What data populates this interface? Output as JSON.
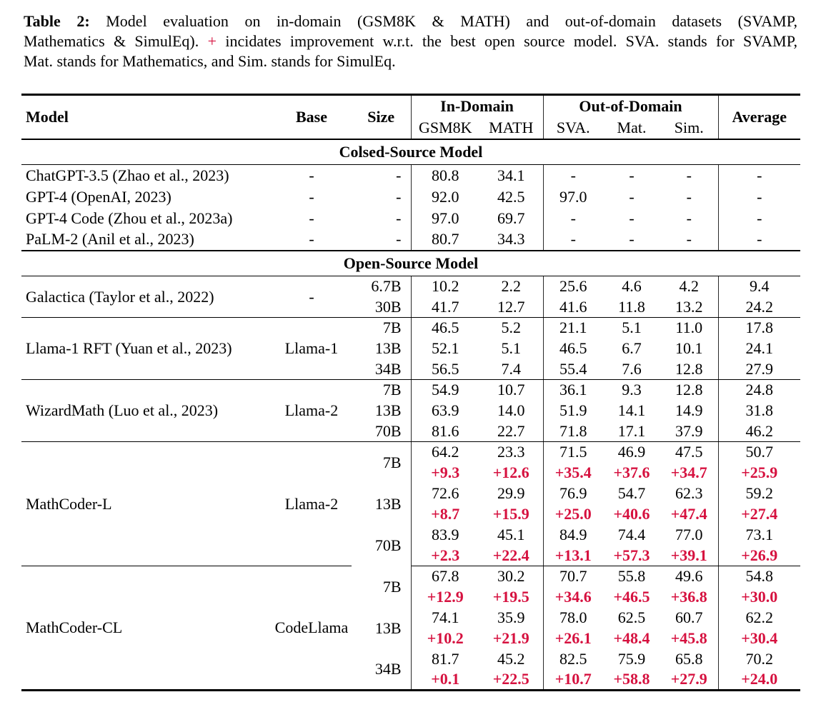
{
  "colors": {
    "accent_red": "#D6113F"
  },
  "caption": {
    "lines": [
      {
        "label": "Table 2:",
        "text": "Model evaluation on in-domain (GSM8K & MATH) and out-of-domain datasets (SVAMP,"
      },
      {
        "pre": "Mathematics & SimulEq).",
        "plus": "+",
        "post": "incidates improvement w.r.t. the best open source model. SVA. stands for SVAMP,"
      },
      {
        "text": "Mat. stands for Mathematics, and Sim. stands for SimulEq."
      }
    ]
  },
  "table": {
    "header": {
      "model": "Model",
      "base": "Base",
      "size": "Size",
      "in_domain": "In-Domain",
      "out_of_domain": "Out-of-Domain",
      "average": "Average",
      "subcolumns": [
        "GSM8K",
        "MATH",
        "SVA.",
        "Mat.",
        "Sim."
      ]
    },
    "sections": [
      {
        "title": "Colsed-Source Model",
        "groups": [
          {
            "rows": [
              {
                "model": "ChatGPT-3.5 (Zhao et al., 2023)",
                "base": "-",
                "size": "-",
                "values": [
                  "80.8",
                  "34.1",
                  "-",
                  "-",
                  "-",
                  "-"
                ]
              },
              {
                "model": "GPT-4 (OpenAI, 2023)",
                "base": "-",
                "size": "-",
                "values": [
                  "92.0",
                  "42.5",
                  "97.0",
                  "-",
                  "-",
                  "-"
                ]
              },
              {
                "model": "GPT-4 Code (Zhou et al., 2023a)",
                "base": "-",
                "size": "-",
                "values": [
                  "97.0",
                  "69.7",
                  "-",
                  "-",
                  "-",
                  "-"
                ]
              },
              {
                "model": "PaLM-2 (Anil et al., 2023)",
                "base": "-",
                "size": "-",
                "values": [
                  "80.7",
                  "34.3",
                  "-",
                  "-",
                  "-",
                  "-"
                ]
              }
            ]
          }
        ]
      },
      {
        "title": "Open-Source Model",
        "groups": [
          {
            "model": "Galactica (Taylor et al., 2022)",
            "base": "-",
            "rows": [
              {
                "size": "6.7B",
                "values": [
                  "10.2",
                  "2.2",
                  "25.6",
                  "4.6",
                  "4.2",
                  "9.4"
                ]
              },
              {
                "size": "30B",
                "values": [
                  "41.7",
                  "12.7",
                  "41.6",
                  "11.8",
                  "13.2",
                  "24.2"
                ]
              }
            ]
          },
          {
            "model": "Llama-1 RFT (Yuan et al., 2023)",
            "base": "Llama-1",
            "rows": [
              {
                "size": "7B",
                "values": [
                  "46.5",
                  "5.2",
                  "21.1",
                  "5.1",
                  "11.0",
                  "17.8"
                ]
              },
              {
                "size": "13B",
                "values": [
                  "52.1",
                  "5.1",
                  "46.5",
                  "6.7",
                  "10.1",
                  "24.1"
                ]
              },
              {
                "size": "34B",
                "values": [
                  "56.5",
                  "7.4",
                  "55.4",
                  "7.6",
                  "12.8",
                  "27.9"
                ]
              }
            ]
          },
          {
            "model": "WizardMath (Luo et al., 2023)",
            "base": "Llama-2",
            "rows": [
              {
                "size": "7B",
                "values": [
                  "54.9",
                  "10.7",
                  "36.1",
                  "9.3",
                  "12.8",
                  "24.8"
                ]
              },
              {
                "size": "13B",
                "values": [
                  "63.9",
                  "14.0",
                  "51.9",
                  "14.1",
                  "14.9",
                  "31.8"
                ]
              },
              {
                "size": "70B",
                "values": [
                  "81.6",
                  "22.7",
                  "71.8",
                  "17.1",
                  "37.9",
                  "46.2"
                ]
              }
            ]
          },
          {
            "model": "MathCoder-L",
            "base": "Llama-2",
            "rows": [
              {
                "size": "7B",
                "values": [
                  "64.2",
                  "23.3",
                  "71.5",
                  "46.9",
                  "47.5",
                  "50.7"
                ],
                "delta": [
                  "+9.3",
                  "+12.6",
                  "+35.4",
                  "+37.6",
                  "+34.7",
                  "+25.9"
                ]
              },
              {
                "size": "13B",
                "values": [
                  "72.6",
                  "29.9",
                  "76.9",
                  "54.7",
                  "62.3",
                  "59.2"
                ],
                "delta": [
                  "+8.7",
                  "+15.9",
                  "+25.0",
                  "+40.6",
                  "+47.4",
                  "+27.4"
                ]
              },
              {
                "size": "70B",
                "values": [
                  "83.9",
                  "45.1",
                  "84.9",
                  "74.4",
                  "77.0",
                  "73.1"
                ],
                "delta": [
                  "+2.3",
                  "+22.4",
                  "+13.1",
                  "+57.3",
                  "+39.1",
                  "+26.9"
                ]
              }
            ]
          },
          {
            "model": "MathCoder-CL",
            "base": "CodeLlama",
            "rows": [
              {
                "size": "7B",
                "values": [
                  "67.8",
                  "30.2",
                  "70.7",
                  "55.8",
                  "49.6",
                  "54.8"
                ],
                "delta": [
                  "+12.9",
                  "+19.5",
                  "+34.6",
                  "+46.5",
                  "+36.8",
                  "+30.0"
                ]
              },
              {
                "size": "13B",
                "values": [
                  "74.1",
                  "35.9",
                  "78.0",
                  "62.5",
                  "60.7",
                  "62.2"
                ],
                "delta": [
                  "+10.2",
                  "+21.9",
                  "+26.1",
                  "+48.4",
                  "+45.8",
                  "+30.4"
                ]
              },
              {
                "size": "34B",
                "values": [
                  "81.7",
                  "45.2",
                  "82.5",
                  "75.9",
                  "65.8",
                  "70.2"
                ],
                "delta": [
                  "+0.1",
                  "+22.5",
                  "+10.7",
                  "+58.8",
                  "+27.9",
                  "+24.0"
                ]
              }
            ]
          }
        ]
      }
    ]
  }
}
